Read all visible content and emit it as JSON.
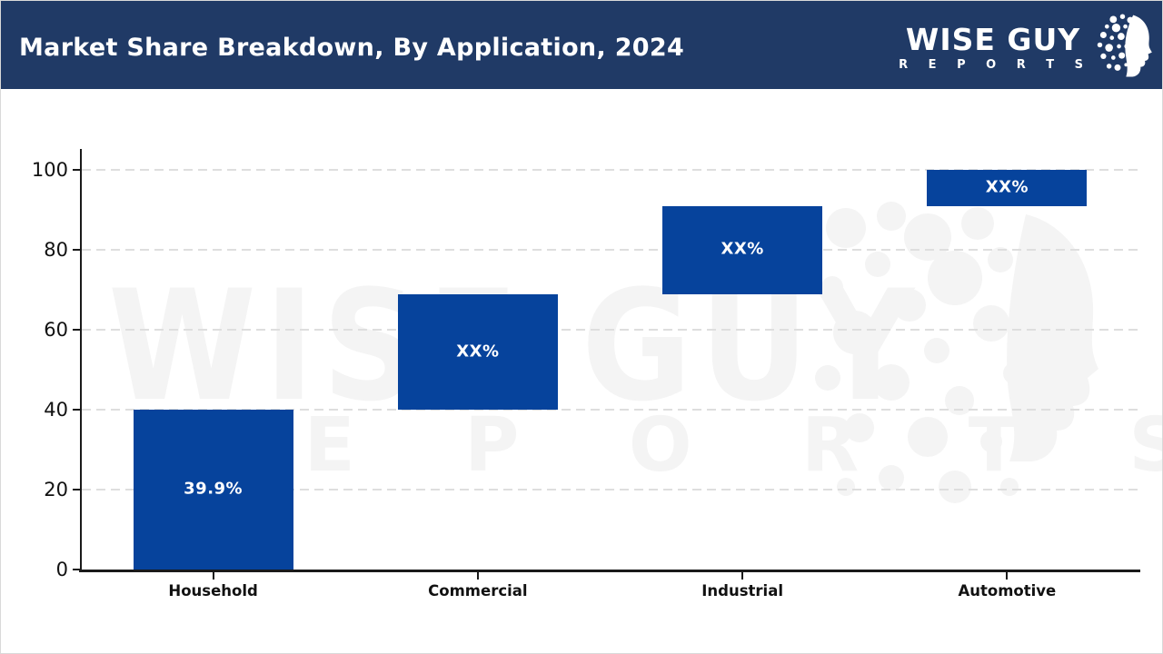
{
  "header": {
    "title": "Market Share Breakdown, By Application, 2024",
    "logo_line1": "WISE GUY",
    "logo_line2": "R E P O R T S"
  },
  "watermark": {
    "line1": "WISE GUY",
    "line2": "R E P O R T S"
  },
  "colors": {
    "header_bg": "#203a66",
    "bar_blue": "#06439c",
    "grid_gray": "#dedede",
    "axis_black": "#1a1a1a",
    "watermark_gray": "#f4f4f4",
    "bar_label_text": "#ffffff"
  },
  "chart_data": {
    "type": "bar",
    "subtype": "waterfall",
    "title": "Market Share Breakdown, By Application, 2024",
    "categories": [
      "Household",
      "Commercial",
      "Industrial",
      "Automotive"
    ],
    "segments": [
      {
        "category": "Household",
        "start": 0,
        "end": 39.9,
        "label": "39.9%"
      },
      {
        "category": "Commercial",
        "start": 39.9,
        "end": 68.9,
        "label": "XX%"
      },
      {
        "category": "Industrial",
        "start": 68.9,
        "end": 90.9,
        "label": "XX%"
      },
      {
        "category": "Automotive",
        "start": 90.9,
        "end": 100,
        "label": "XX%"
      }
    ],
    "yticks": [
      0,
      20,
      40,
      60,
      80,
      100
    ],
    "ylim": [
      0,
      105
    ],
    "xlabel": "",
    "ylabel": "",
    "grid": "horizontal-dashed",
    "legend": "none"
  }
}
